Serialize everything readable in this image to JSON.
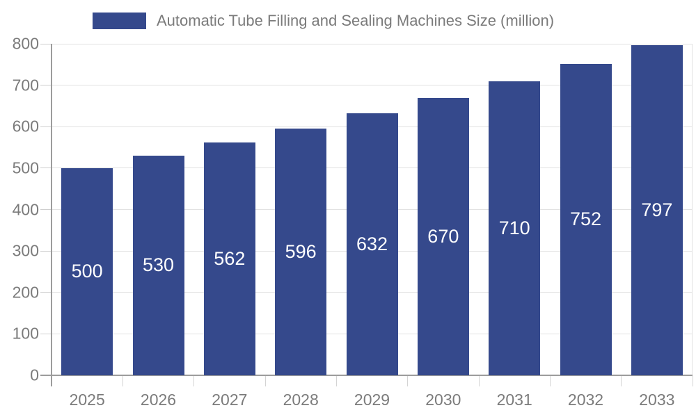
{
  "chart_data": {
    "type": "bar",
    "title": "Automatic Tube Filling and Sealing Machines Size (million)",
    "categories": [
      "2025",
      "2026",
      "2027",
      "2028",
      "2029",
      "2030",
      "2031",
      "2032",
      "2033"
    ],
    "values": [
      500,
      530,
      562,
      596,
      632,
      670,
      710,
      752,
      797
    ],
    "xlabel": "",
    "ylabel": "",
    "ylim": [
      0,
      800
    ],
    "yticks": [
      0,
      100,
      200,
      300,
      400,
      500,
      600,
      700,
      800
    ],
    "grid": true,
    "legend_position": "top-center",
    "value_label_position": "inside-center",
    "colors": {
      "bar": "#35498c",
      "value_text": "#ffffff",
      "axis_text": "#7b7b7b",
      "axis_line": "#9c9c9c",
      "gridline": "#e2e2e2",
      "background": "#ffffff"
    }
  }
}
